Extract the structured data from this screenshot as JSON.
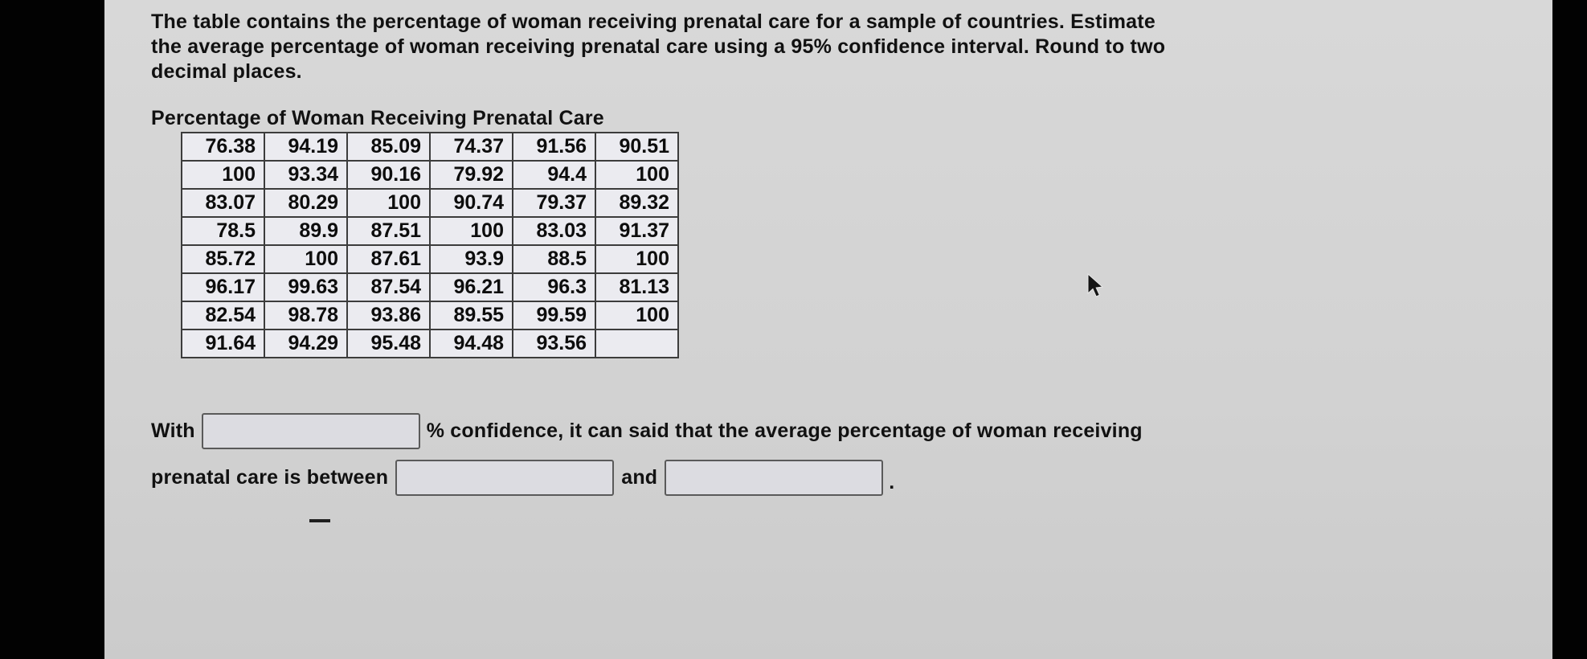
{
  "problem": {
    "statement_lines": [
      "The table contains the percentage of woman receiving prenatal care for a sample of countries. Estimate",
      "the average percentage of woman receiving prenatal care using a 95% confidence interval. Round to two",
      "decimal places."
    ]
  },
  "table": {
    "title": "Percentage of Woman Receiving Prenatal Care",
    "rows": [
      [
        "76.38",
        "94.19",
        "85.09",
        "74.37",
        "91.56",
        "90.51"
      ],
      [
        "100",
        "93.34",
        "90.16",
        "79.92",
        "94.4",
        "100"
      ],
      [
        "83.07",
        "80.29",
        "100",
        "90.74",
        "79.37",
        "89.32"
      ],
      [
        "78.5",
        "89.9",
        "87.51",
        "100",
        "83.03",
        "91.37"
      ],
      [
        "85.72",
        "100",
        "87.61",
        "93.9",
        "88.5",
        "100"
      ],
      [
        "96.17",
        "99.63",
        "87.54",
        "96.21",
        "96.3",
        "81.13"
      ],
      [
        "82.54",
        "98.78",
        "93.86",
        "89.55",
        "99.59",
        "100"
      ],
      [
        "91.64",
        "94.29",
        "95.48",
        "94.48",
        "93.56",
        ""
      ]
    ]
  },
  "answer": {
    "with_label": "With",
    "confidence_value": "",
    "confidence_suffix": "% confidence, it can said that the average percentage of woman receiving",
    "between_label": "prenatal care is between",
    "lower_value": "",
    "and_label": "and",
    "upper_value": "",
    "period": "."
  },
  "colors": {
    "page_background": "#d3d3d3",
    "table_cell_background": "#ebebf0",
    "border": "#3c3c3c",
    "text": "#111111"
  }
}
